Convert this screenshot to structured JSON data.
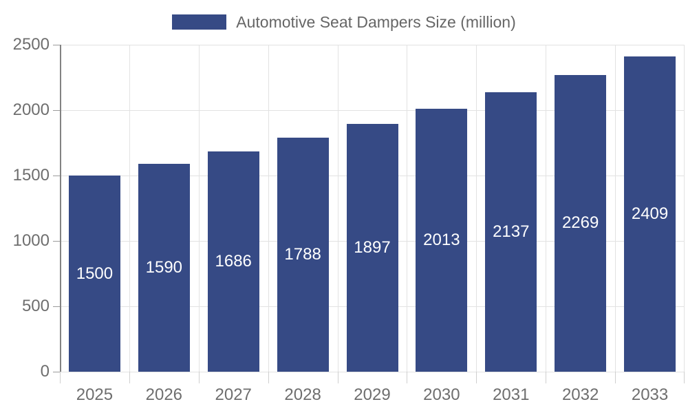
{
  "legend": {
    "label": "Automotive Seat Dampers Size (million)"
  },
  "chart_data": {
    "type": "bar",
    "title": "Automotive Seat Dampers Size (million)",
    "series_name": "Automotive Seat Dampers Size (million)",
    "categories": [
      "2025",
      "2026",
      "2027",
      "2028",
      "2029",
      "2030",
      "2031",
      "2032",
      "2033"
    ],
    "values": [
      1500,
      1590,
      1686,
      1788,
      1897,
      2013,
      2137,
      2269,
      2409
    ],
    "xlabel": "",
    "ylabel": "",
    "ylim": [
      0,
      2500
    ],
    "yticks": [
      0,
      500,
      1000,
      1500,
      2000,
      2500
    ],
    "grid": true,
    "legend_position": "top-center",
    "value_label_position": "inside-center"
  },
  "colors": {
    "bar": "#364A85",
    "grid": "#e2e2e2",
    "axis_line": "#828282",
    "y_tick": "#9a9a9a",
    "x_tick": "#cfcfcf",
    "tick_label": "#6e6e6e",
    "legend_text": "#666666",
    "value_label": "#ffffff",
    "background": "#ffffff"
  }
}
